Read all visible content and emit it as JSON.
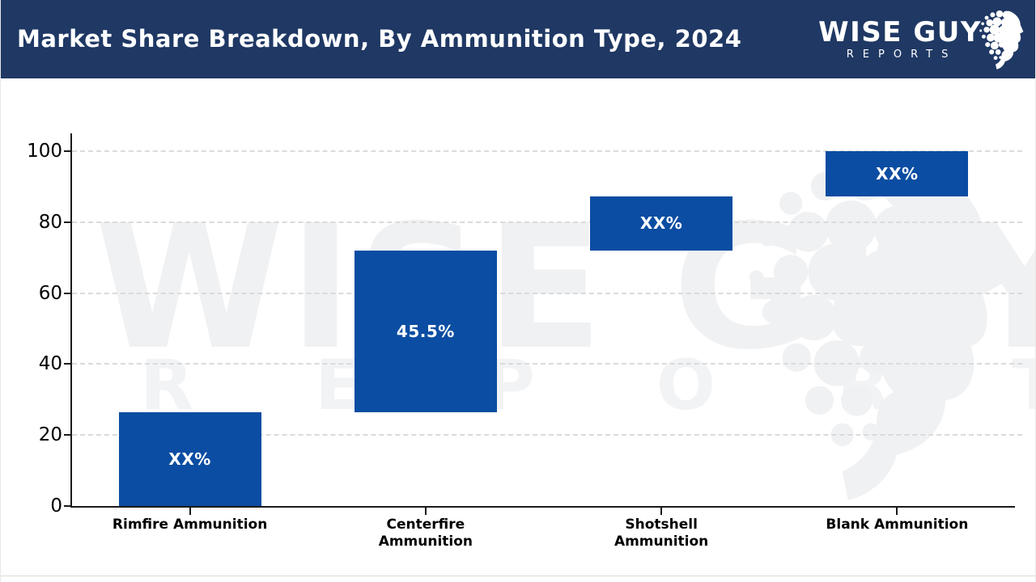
{
  "header": {
    "title": "Market Share Breakdown, By Ammunition Type, 2024",
    "logo": {
      "line1": "WISE GUY",
      "line2": "REPORTS",
      "face_icon": "dotted-head-profile-icon"
    }
  },
  "watermark": {
    "line1": "WISE GUY",
    "line2": "R E P O R T S"
  },
  "colors": {
    "header_bg": "#1F3864",
    "bar": "#0B4DA2",
    "grid": "#DBDBDB",
    "axis": "#1A1A1A",
    "bar_label": "#FFFFFF",
    "watermark": "#F0F1F3"
  },
  "chart_data": {
    "type": "bar",
    "subtype": "floating-stacked-percentage-breakdown",
    "title": "Market Share Breakdown, By Ammunition Type, 2024",
    "categories": [
      "Rimfire Ammunition",
      "Centerfire Ammunition",
      "Shotshell Ammunition",
      "Blank Ammunition"
    ],
    "category_label_lines": [
      [
        "Rimfire Ammunition"
      ],
      [
        "Centerfire",
        "Ammunition"
      ],
      [
        "Shotshell",
        "Ammunition"
      ],
      [
        "Blank Ammunition"
      ]
    ],
    "segments": [
      {
        "category": "Rimfire Ammunition",
        "start": 0,
        "end": 26.5,
        "size": 26.5,
        "label": "XX%"
      },
      {
        "category": "Centerfire Ammunition",
        "start": 26.5,
        "end": 72.0,
        "size": 45.5,
        "label": "45.5%"
      },
      {
        "category": "Shotshell Ammunition",
        "start": 72.0,
        "end": 87.3,
        "size": 15.3,
        "label": "XX%"
      },
      {
        "category": "Blank Ammunition",
        "start": 87.3,
        "end": 100.0,
        "size": 12.7,
        "label": "XX%"
      }
    ],
    "xlabel": "",
    "ylabel": "",
    "ylim": [
      0,
      105
    ],
    "yticks": [
      0,
      20,
      40,
      60,
      80,
      100
    ],
    "grid": "horizontal-dashed",
    "legend": "none"
  }
}
